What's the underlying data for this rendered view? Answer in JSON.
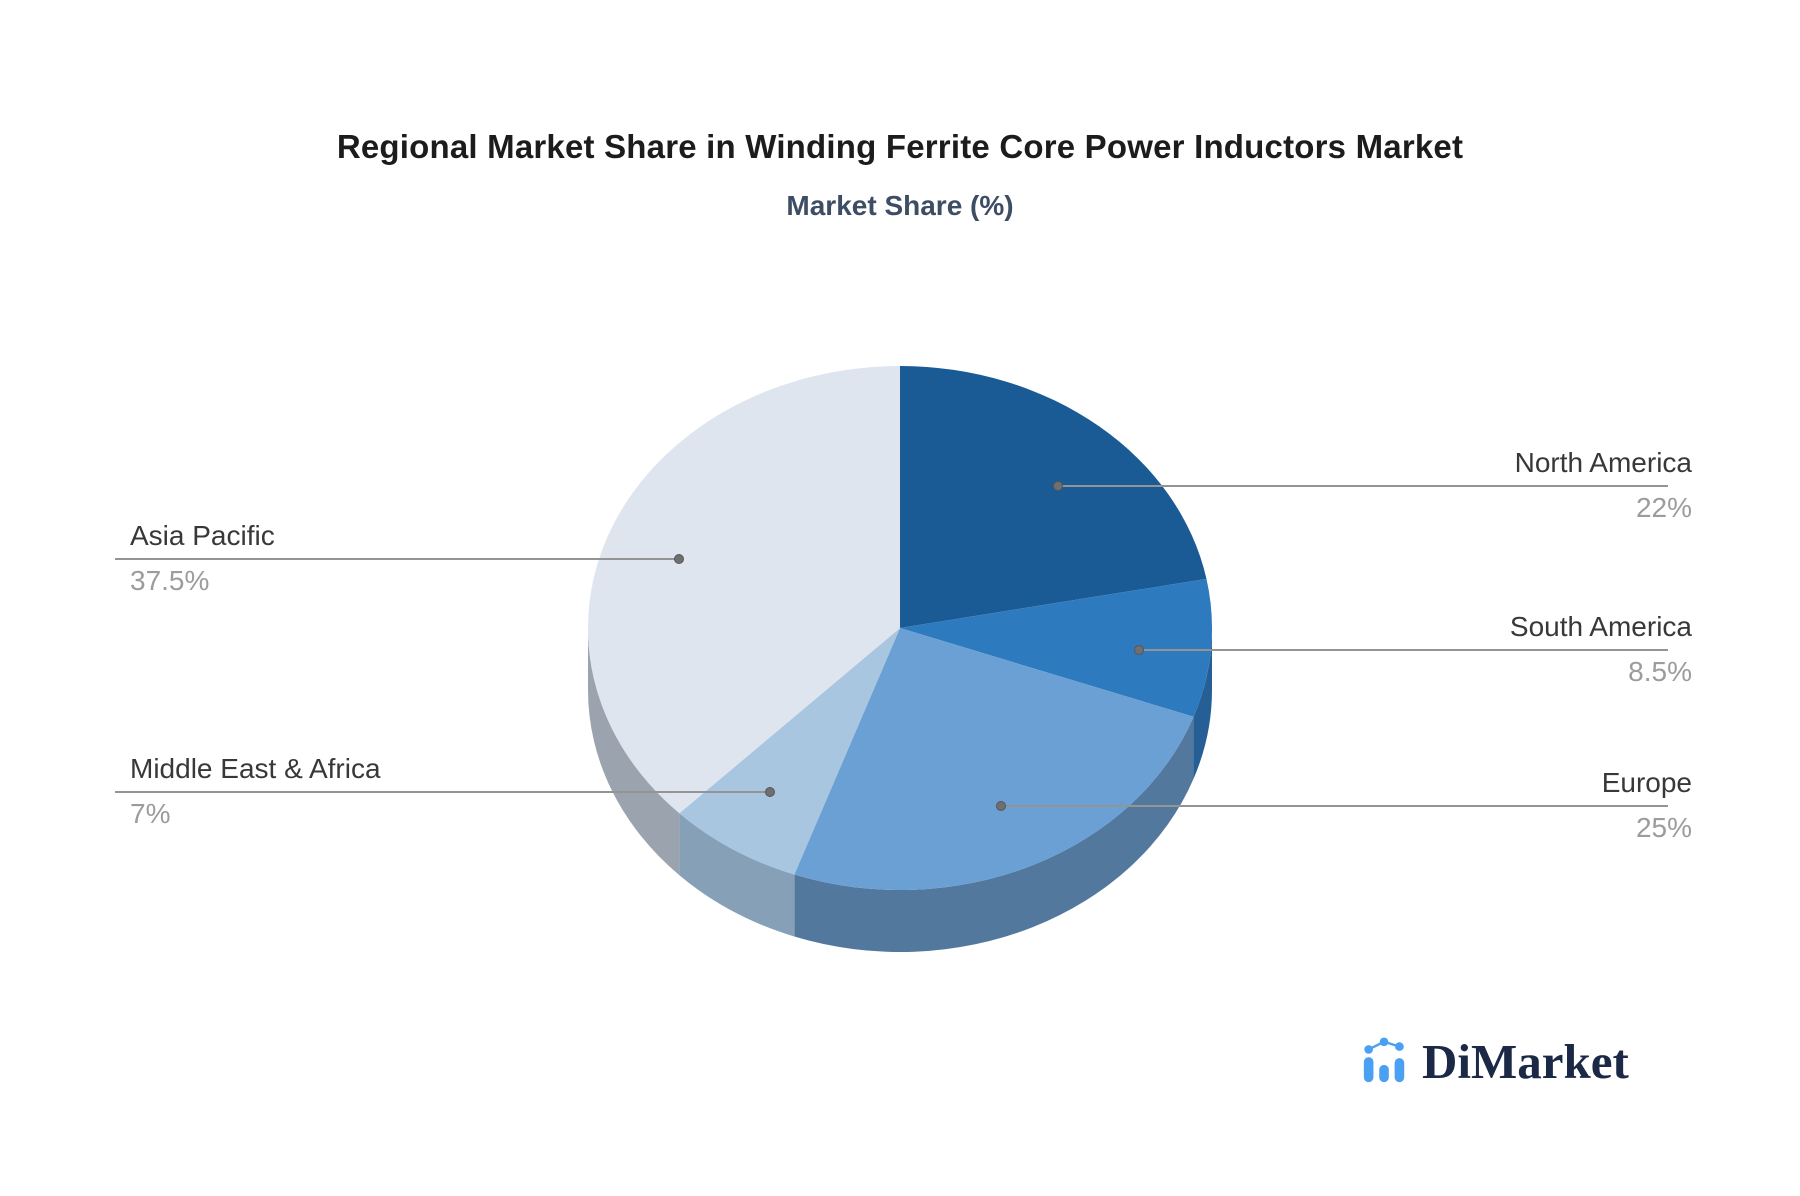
{
  "page": {
    "background": "#ffffff"
  },
  "chart_data": {
    "type": "pie",
    "title": "Regional Market Share in Winding Ferrite Core Power Inductors Market",
    "subtitle": "Market Share (%)",
    "total": 100,
    "start_angle_deg": 0,
    "direction": "clockwise",
    "legend": "none",
    "effect": "3d",
    "labels_style": {
      "name_color": "#383838",
      "value_color": "#9c9c9c",
      "connector_color": "#949494",
      "connector_dot_color": "#6f6f6f"
    },
    "slices": [
      {
        "label": "North America",
        "value": 22,
        "value_text": "22%",
        "color": "#1b5b95",
        "side_color": "#154a7c",
        "label_side": "right"
      },
      {
        "label": "South America",
        "value": 8.5,
        "value_text": "8.5%",
        "color": "#2e7abf",
        "side_color": "#255f95",
        "label_side": "right"
      },
      {
        "label": "Europe",
        "value": 25,
        "value_text": "25%",
        "color": "#6aa0d4",
        "side_color": "#53789e",
        "label_side": "right"
      },
      {
        "label": "Middle East & Africa",
        "value": 7,
        "value_text": "7%",
        "color": "#a9c6e1",
        "side_color": "#86a0b8",
        "label_side": "left"
      },
      {
        "label": "Asia Pacific",
        "value": 37.5,
        "value_text": "37.5%",
        "color": "#dee5ef",
        "side_color": "#9aa3ae",
        "label_side": "left"
      }
    ]
  },
  "branding": {
    "logo_text": "DiMarket",
    "logo_icon": "bar-line-chart-icon",
    "icon_color": "#4aa1f3",
    "text_color": "#1b2946"
  }
}
